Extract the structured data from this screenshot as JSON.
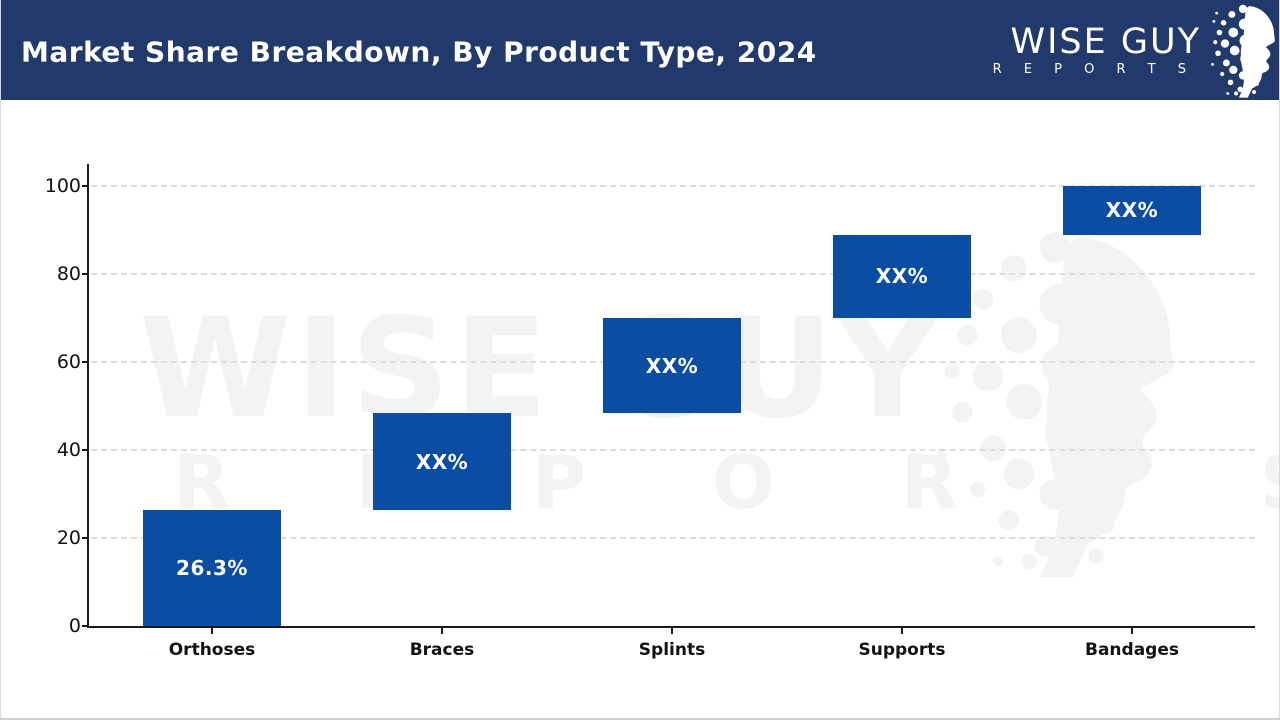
{
  "header": {
    "title": "Market Share Breakdown, By Product Type, 2024",
    "logo": {
      "line1": "WISE GUY",
      "line2": "R E P O R T S"
    }
  },
  "watermark": {
    "line1": "WISE GUY",
    "line2": "R E P O R T S"
  },
  "colors": {
    "header_bg": "#22396b",
    "bar": "#0b4da2",
    "grid": "#dcdcdc",
    "axis": "#1a1a1a",
    "watermark": "#f3f3f3",
    "bar_label_text": "#ffffff",
    "axis_label_text": "#111111"
  },
  "chart_data": {
    "type": "bar",
    "subtype": "waterfall (floating cumulative segments, no connectors)",
    "title": "Market Share Breakdown, By Product Type, 2024",
    "categories": [
      "Orthoses",
      "Braces",
      "Splints",
      "Supports",
      "Bandages"
    ],
    "segments": [
      {
        "category": "Orthoses",
        "start": 0,
        "end": 26.3,
        "label": "26.3%"
      },
      {
        "category": "Braces",
        "start": 26.3,
        "end": 48.4,
        "label": "XX%"
      },
      {
        "category": "Splints",
        "start": 48.4,
        "end": 70,
        "label": "XX%"
      },
      {
        "category": "Supports",
        "start": 70,
        "end": 88.9,
        "label": "XX%"
      },
      {
        "category": "Bandages",
        "start": 88.9,
        "end": 100,
        "label": "XX%"
      }
    ],
    "yticks": [
      0,
      20,
      40,
      60,
      80,
      100
    ],
    "ylim": [
      0,
      100
    ],
    "xlabel": "",
    "ylabel": "",
    "grid": "horizontal dashed",
    "legend": "none"
  }
}
